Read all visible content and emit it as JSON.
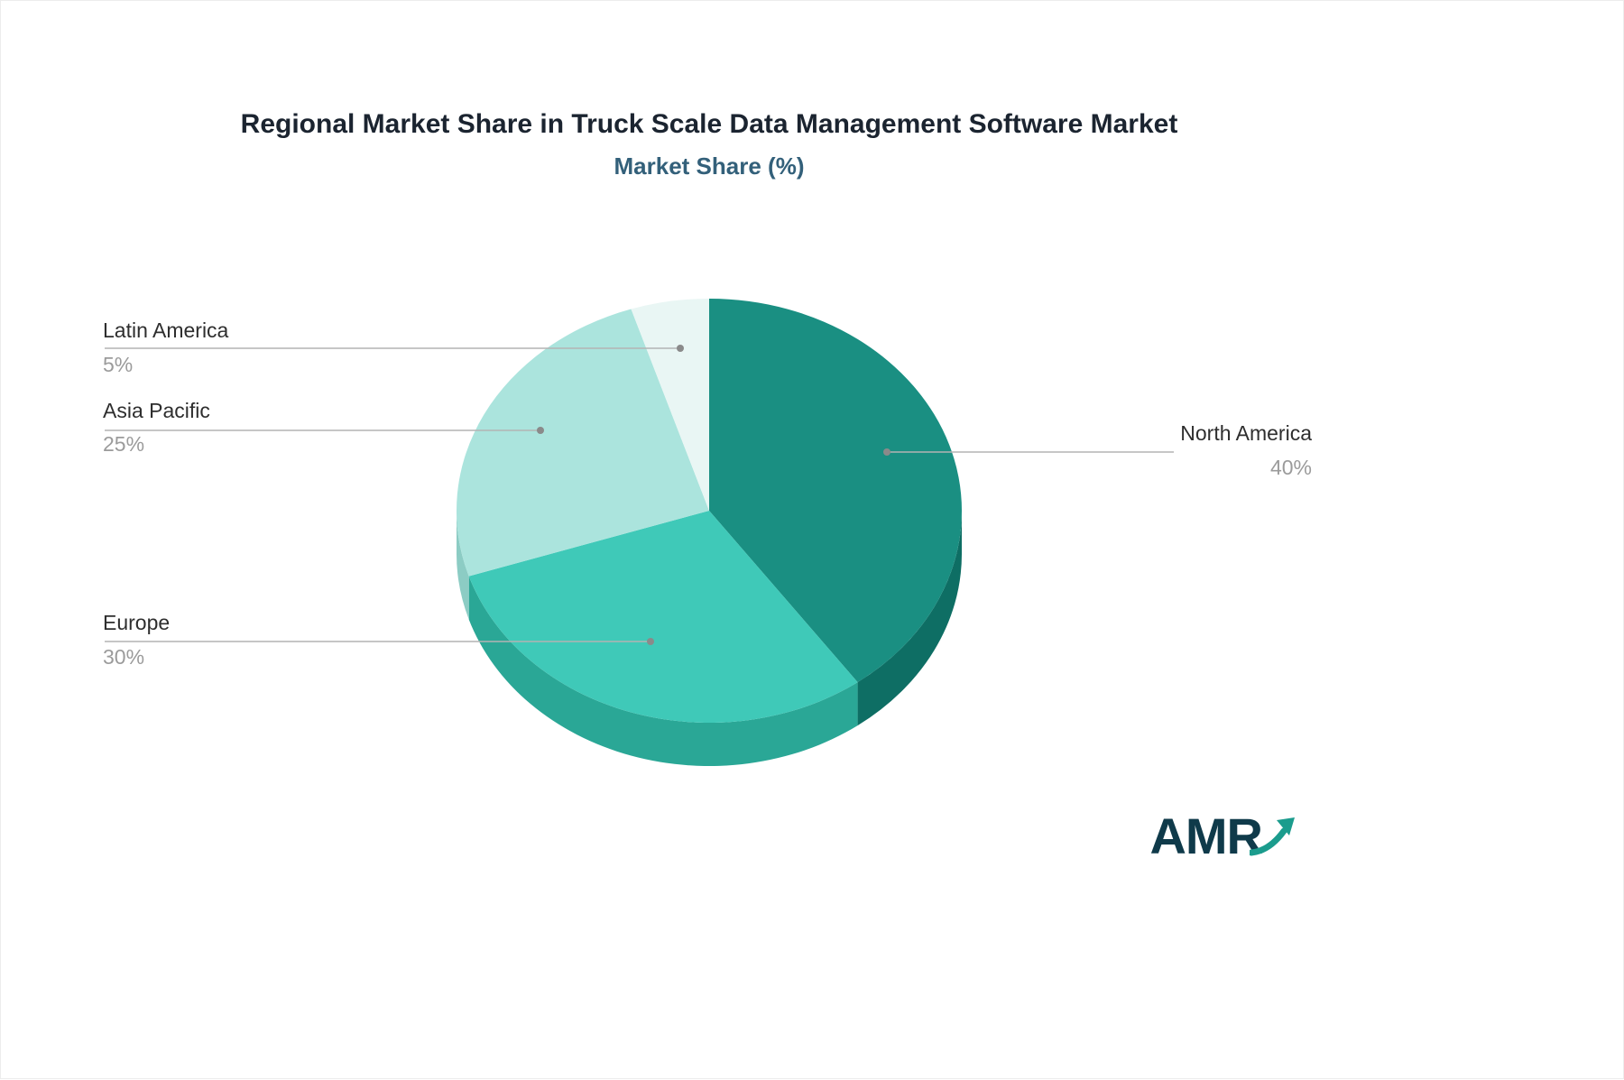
{
  "page": {
    "title": "Regional Market Share in Truck Scale Data Management Software Market",
    "subtitle": "Market Share (%)",
    "logo_text": "AMR"
  },
  "colors": {
    "title": "#1b2430",
    "subtitle": "#33607a",
    "label_name": "#2e2e2e",
    "label_value": "#9b9b9b",
    "leader_line": "#b3b3b3",
    "leader_dot": "#8a8a8a",
    "logo_text": "#0f3a4a",
    "logo_arrow": "#1b9c8d"
  },
  "chart_data": {
    "type": "pie",
    "title": "Regional Market Share in Truck Scale Data Management Software Market",
    "subtitle": "Market Share (%)",
    "unit": "%",
    "style": "3d-pie",
    "legend_position": "none",
    "labels_style": "leader-lines",
    "slices": [
      {
        "label": "North America",
        "value": 40,
        "pct_label": "40%",
        "color": "#1a8f82",
        "side_color": "#0e6e64"
      },
      {
        "label": "Europe",
        "value": 30,
        "pct_label": "30%",
        "color": "#3fc9b8",
        "side_color": "#2aa796"
      },
      {
        "label": "Asia Pacific",
        "value": 25,
        "pct_label": "25%",
        "color": "#abe4dd",
        "side_color": "#8cccc4"
      },
      {
        "label": "Latin America",
        "value": 5,
        "pct_label": "5%",
        "color": "#e9f6f4",
        "side_color": "#cde6e2"
      }
    ]
  }
}
